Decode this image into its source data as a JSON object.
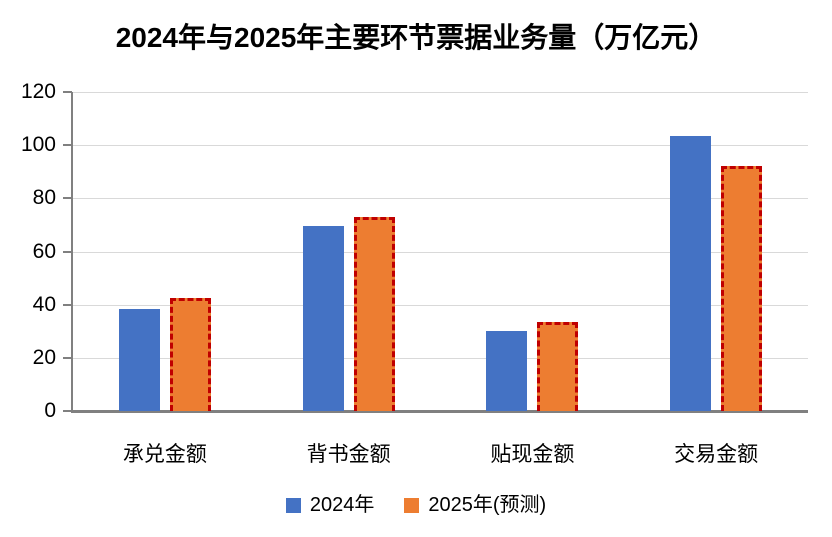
{
  "chart_data": {
    "type": "bar",
    "title": "2024年与2025年主要环节票据业务量（万亿元）",
    "categories": [
      "承兑金额",
      "背书金额",
      "贴现金额",
      "交易金额"
    ],
    "series": [
      {
        "name": "2024年",
        "color": "#4472C4",
        "bar_style": "solid",
        "values": [
          38.3,
          69.7,
          30.2,
          103.4
        ]
      },
      {
        "name": "2025年(预测)",
        "color": "#ED7D31",
        "bar_style": "dashed-outline",
        "border_color": "#C00000",
        "values": [
          42.4,
          73.0,
          33.6,
          92.3
        ]
      }
    ],
    "ylim": [
      0,
      120
    ],
    "yticks": [
      0,
      20,
      40,
      60,
      80,
      100,
      120
    ],
    "grid": true,
    "legend_position": "bottom",
    "colors": {
      "axis": "#808080",
      "gridline": "#D9D9D9",
      "background": "#FFFFFF",
      "text": "#000000"
    }
  }
}
